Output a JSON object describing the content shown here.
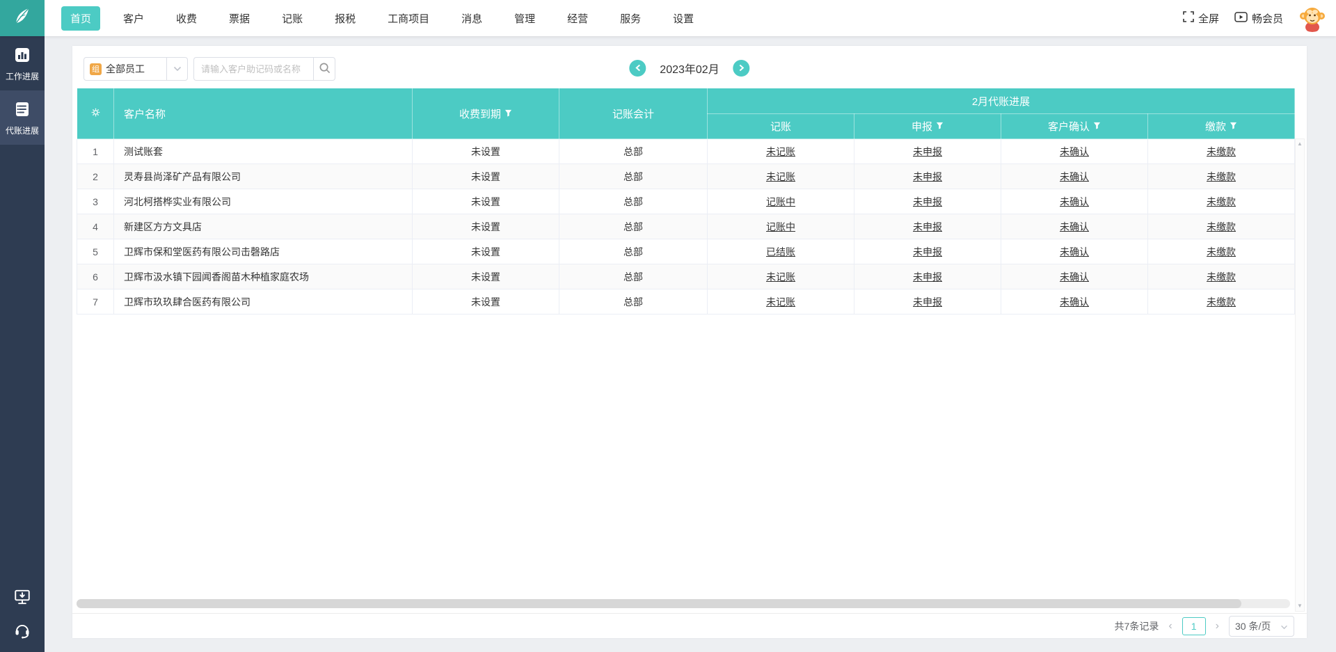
{
  "colors": {
    "accent": "#4ccbc4",
    "logo_bg": "#33a79e",
    "sidebar_bg": "#2e3c52",
    "sidebar_active_bg": "#3e4c66",
    "page_bg": "#edeff2",
    "badge_orange": "#f0a747"
  },
  "nav": {
    "tabs": [
      {
        "label": "首页",
        "active": true
      },
      {
        "label": "客户",
        "active": false
      },
      {
        "label": "收费",
        "active": false
      },
      {
        "label": "票据",
        "active": false
      },
      {
        "label": "记账",
        "active": false
      },
      {
        "label": "报税",
        "active": false
      },
      {
        "label": "工商项目",
        "active": false
      },
      {
        "label": "消息",
        "active": false
      },
      {
        "label": "管理",
        "active": false
      },
      {
        "label": "经营",
        "active": false
      },
      {
        "label": "服务",
        "active": false
      },
      {
        "label": "设置",
        "active": false
      }
    ],
    "fullscreen_label": "全屏",
    "member_label": "畅会员"
  },
  "sidebar": {
    "items": [
      {
        "label": "工作进展",
        "icon": "bar-chart-icon",
        "active": false
      },
      {
        "label": "代账进展",
        "icon": "ledger-icon",
        "active": true
      }
    ],
    "bottom_icons": [
      "client-download-icon",
      "customer-service-icon"
    ]
  },
  "filters": {
    "employee_dropdown": {
      "badge": "组",
      "value": "全部员工"
    },
    "search_placeholder": "请输入客户助记码或名称"
  },
  "date_nav": {
    "current": "2023年02月"
  },
  "table": {
    "group_header": "2月代账进展",
    "columns": [
      "客户名称",
      "收费到期",
      "记账会计"
    ],
    "progress_columns": [
      "记账",
      "申报",
      "客户确认",
      "缴款"
    ],
    "rows": [
      {
        "index": "1",
        "name": "测试账套",
        "fee_due": "未设置",
        "accountant": "总部",
        "bookkeeping": "未记账",
        "declare": "未申报",
        "confirm": "未确认",
        "payment": "未缴款"
      },
      {
        "index": "2",
        "name": "灵寿县尚泽矿产品有限公司",
        "fee_due": "未设置",
        "accountant": "总部",
        "bookkeeping": "未记账",
        "declare": "未申报",
        "confirm": "未确认",
        "payment": "未缴款"
      },
      {
        "index": "3",
        "name": "河北柯搭桦实业有限公司",
        "fee_due": "未设置",
        "accountant": "总部",
        "bookkeeping": "记账中",
        "declare": "未申报",
        "confirm": "未确认",
        "payment": "未缴款"
      },
      {
        "index": "4",
        "name": "新建区方方文具店",
        "fee_due": "未设置",
        "accountant": "总部",
        "bookkeeping": "记账中",
        "declare": "未申报",
        "confirm": "未确认",
        "payment": "未缴款"
      },
      {
        "index": "5",
        "name": "卫辉市保和堂医药有限公司击磬路店",
        "fee_due": "未设置",
        "accountant": "总部",
        "bookkeeping": "已结账",
        "declare": "未申报",
        "confirm": "未确认",
        "payment": "未缴款"
      },
      {
        "index": "6",
        "name": "卫辉市汲水镇下园闻香阁苗木种植家庭农场",
        "fee_due": "未设置",
        "accountant": "总部",
        "bookkeeping": "未记账",
        "declare": "未申报",
        "confirm": "未确认",
        "payment": "未缴款"
      },
      {
        "index": "7",
        "name": "卫辉市玖玖肆合医药有限公司",
        "fee_due": "未设置",
        "accountant": "总部",
        "bookkeeping": "未记账",
        "declare": "未申报",
        "confirm": "未确认",
        "payment": "未缴款"
      }
    ]
  },
  "pagination": {
    "total_text": "共7条记录",
    "current_page": "1",
    "page_size": "30 条/页"
  }
}
